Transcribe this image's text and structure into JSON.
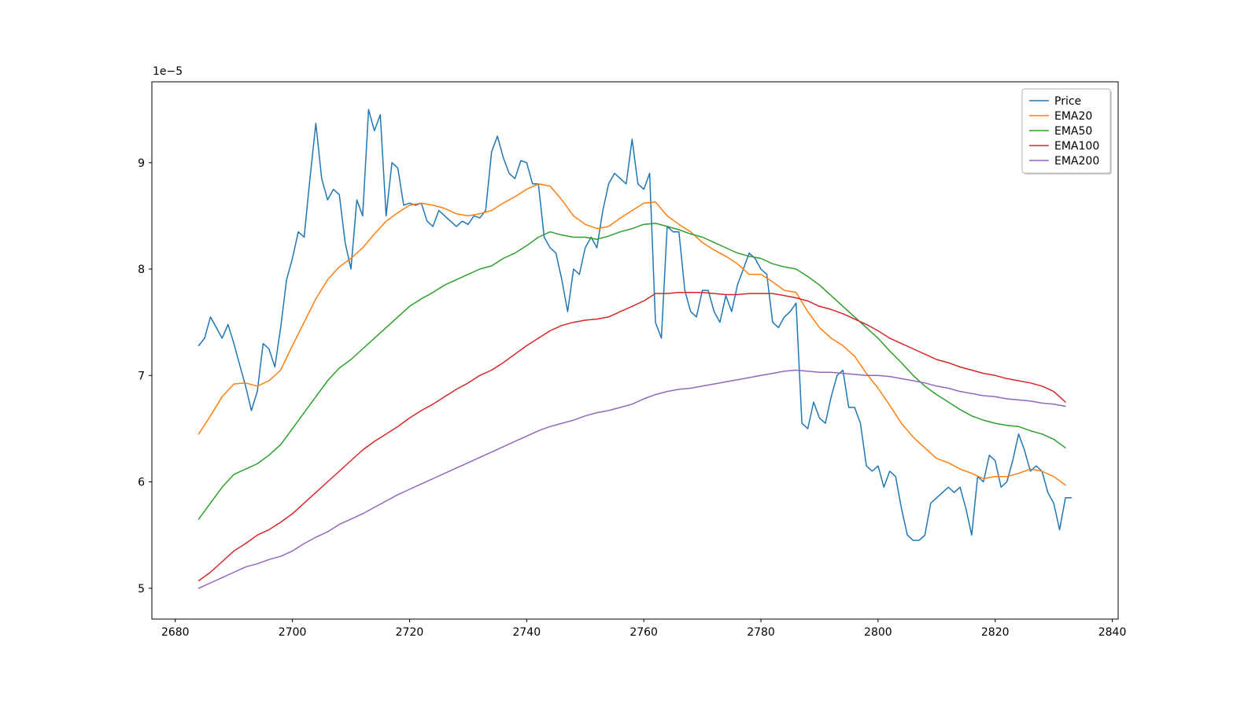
{
  "figure": {
    "background": "#ffffff"
  },
  "chart_data": {
    "type": "line",
    "title": "",
    "xlabel": "",
    "ylabel": "",
    "y_offset_label": "1e−5",
    "grid": false,
    "legend_position": "upper right",
    "xlim": [
      2676,
      2841
    ],
    "ylim": [
      4.71,
      9.76
    ],
    "x_ticks": [
      2680,
      2700,
      2720,
      2740,
      2760,
      2780,
      2800,
      2820,
      2840
    ],
    "y_ticks": [
      5,
      6,
      7,
      8,
      9
    ],
    "series": [
      {
        "name": "Price",
        "color": "#1f77b4",
        "x_start": 2684,
        "x_step": 1,
        "values": [
          7.28,
          7.35,
          7.55,
          7.45,
          7.35,
          7.48,
          7.3,
          7.1,
          6.9,
          6.67,
          6.85,
          7.3,
          7.25,
          7.08,
          7.45,
          7.9,
          8.1,
          8.35,
          8.3,
          8.85,
          9.37,
          8.85,
          8.65,
          8.75,
          8.7,
          8.25,
          8.0,
          8.65,
          8.5,
          9.5,
          9.3,
          9.45,
          8.5,
          9.0,
          8.95,
          8.6,
          8.62,
          8.6,
          8.62,
          8.45,
          8.4,
          8.55,
          8.5,
          8.45,
          8.4,
          8.45,
          8.42,
          8.5,
          8.48,
          8.55,
          9.1,
          9.25,
          9.05,
          8.9,
          8.85,
          9.02,
          9.0,
          8.8,
          8.8,
          8.3,
          8.2,
          8.15,
          7.9,
          7.6,
          8.0,
          7.95,
          8.2,
          8.3,
          8.2,
          8.55,
          8.8,
          8.9,
          8.85,
          8.8,
          9.22,
          8.8,
          8.75,
          8.9,
          7.5,
          7.35,
          8.4,
          8.35,
          8.35,
          7.8,
          7.6,
          7.55,
          7.8,
          7.8,
          7.6,
          7.5,
          7.75,
          7.6,
          7.85,
          8.0,
          8.15,
          8.1,
          8.0,
          7.95,
          7.5,
          7.45,
          7.55,
          7.6,
          7.68,
          6.55,
          6.5,
          6.75,
          6.6,
          6.55,
          6.8,
          7.0,
          7.05,
          6.7,
          6.7,
          6.55,
          6.15,
          6.1,
          6.15,
          5.95,
          6.1,
          6.05,
          5.75,
          5.5,
          5.45,
          5.45,
          5.5,
          5.8,
          5.85,
          5.9,
          5.95,
          5.9,
          5.95,
          5.75,
          5.5,
          6.05,
          6.0,
          6.25,
          6.2,
          5.95,
          6.0,
          6.2,
          6.45,
          6.3,
          6.1,
          6.15,
          6.1,
          5.9,
          5.8,
          5.55,
          5.85,
          5.85
        ]
      },
      {
        "name": "EMA20",
        "color": "#ff7f0e",
        "x_start": 2684,
        "x_step": 2,
        "values": [
          6.45,
          6.62,
          6.8,
          6.92,
          6.93,
          6.9,
          6.95,
          7.05,
          7.28,
          7.5,
          7.72,
          7.9,
          8.02,
          8.1,
          8.2,
          8.33,
          8.45,
          8.53,
          8.6,
          8.62,
          8.6,
          8.57,
          8.52,
          8.5,
          8.52,
          8.55,
          8.62,
          8.68,
          8.75,
          8.8,
          8.78,
          8.65,
          8.5,
          8.42,
          8.38,
          8.4,
          8.48,
          8.55,
          8.62,
          8.63,
          8.5,
          8.42,
          8.35,
          8.25,
          8.18,
          8.12,
          8.05,
          7.95,
          7.95,
          7.88,
          7.8,
          7.78,
          7.6,
          7.45,
          7.35,
          7.28,
          7.18,
          7.02,
          6.88,
          6.72,
          6.55,
          6.42,
          6.32,
          6.22,
          6.18,
          6.12,
          6.08,
          6.03,
          6.05,
          6.05,
          6.08,
          6.12,
          6.1,
          6.05,
          5.97
        ]
      },
      {
        "name": "EMA50",
        "color": "#2ca02c",
        "x_start": 2684,
        "x_step": 2,
        "values": [
          5.65,
          5.8,
          5.95,
          6.07,
          6.12,
          6.17,
          6.25,
          6.35,
          6.5,
          6.65,
          6.8,
          6.95,
          7.07,
          7.15,
          7.25,
          7.35,
          7.45,
          7.55,
          7.65,
          7.72,
          7.78,
          7.85,
          7.9,
          7.95,
          8.0,
          8.03,
          8.1,
          8.15,
          8.22,
          8.3,
          8.35,
          8.32,
          8.3,
          8.3,
          8.28,
          8.31,
          8.35,
          8.38,
          8.42,
          8.43,
          8.4,
          8.37,
          8.33,
          8.3,
          8.25,
          8.2,
          8.15,
          8.12,
          8.1,
          8.05,
          8.02,
          8.0,
          7.93,
          7.85,
          7.75,
          7.65,
          7.55,
          7.45,
          7.35,
          7.23,
          7.12,
          7.0,
          6.9,
          6.82,
          6.75,
          6.68,
          6.62,
          6.58,
          6.55,
          6.53,
          6.52,
          6.48,
          6.45,
          6.4,
          6.32
        ]
      },
      {
        "name": "EMA100",
        "color": "#d62728",
        "x_start": 2684,
        "x_step": 2,
        "values": [
          5.07,
          5.15,
          5.25,
          5.35,
          5.42,
          5.5,
          5.55,
          5.62,
          5.7,
          5.8,
          5.9,
          6.0,
          6.1,
          6.2,
          6.3,
          6.38,
          6.45,
          6.52,
          6.6,
          6.67,
          6.73,
          6.8,
          6.87,
          6.93,
          7.0,
          7.05,
          7.12,
          7.2,
          7.28,
          7.35,
          7.42,
          7.47,
          7.5,
          7.52,
          7.53,
          7.55,
          7.6,
          7.65,
          7.7,
          7.77,
          7.77,
          7.78,
          7.78,
          7.78,
          7.77,
          7.76,
          7.76,
          7.77,
          7.77,
          7.77,
          7.75,
          7.73,
          7.7,
          7.65,
          7.62,
          7.58,
          7.53,
          7.48,
          7.42,
          7.35,
          7.3,
          7.25,
          7.2,
          7.15,
          7.12,
          7.08,
          7.05,
          7.02,
          7.0,
          6.97,
          6.95,
          6.93,
          6.9,
          6.85,
          6.75
        ]
      },
      {
        "name": "EMA200",
        "color": "#9467bd",
        "x_start": 2684,
        "x_step": 2,
        "values": [
          5.0,
          5.05,
          5.1,
          5.15,
          5.2,
          5.23,
          5.27,
          5.3,
          5.35,
          5.42,
          5.48,
          5.53,
          5.6,
          5.65,
          5.7,
          5.76,
          5.82,
          5.88,
          5.93,
          5.98,
          6.03,
          6.08,
          6.13,
          6.18,
          6.23,
          6.28,
          6.33,
          6.38,
          6.43,
          6.48,
          6.52,
          6.55,
          6.58,
          6.62,
          6.65,
          6.67,
          6.7,
          6.73,
          6.78,
          6.82,
          6.85,
          6.87,
          6.88,
          6.9,
          6.92,
          6.94,
          6.96,
          6.98,
          7.0,
          7.02,
          7.04,
          7.05,
          7.04,
          7.03,
          7.03,
          7.02,
          7.01,
          7.0,
          7.0,
          6.99,
          6.97,
          6.95,
          6.93,
          6.9,
          6.88,
          6.85,
          6.83,
          6.81,
          6.8,
          6.78,
          6.77,
          6.76,
          6.74,
          6.73,
          6.71
        ]
      }
    ]
  }
}
